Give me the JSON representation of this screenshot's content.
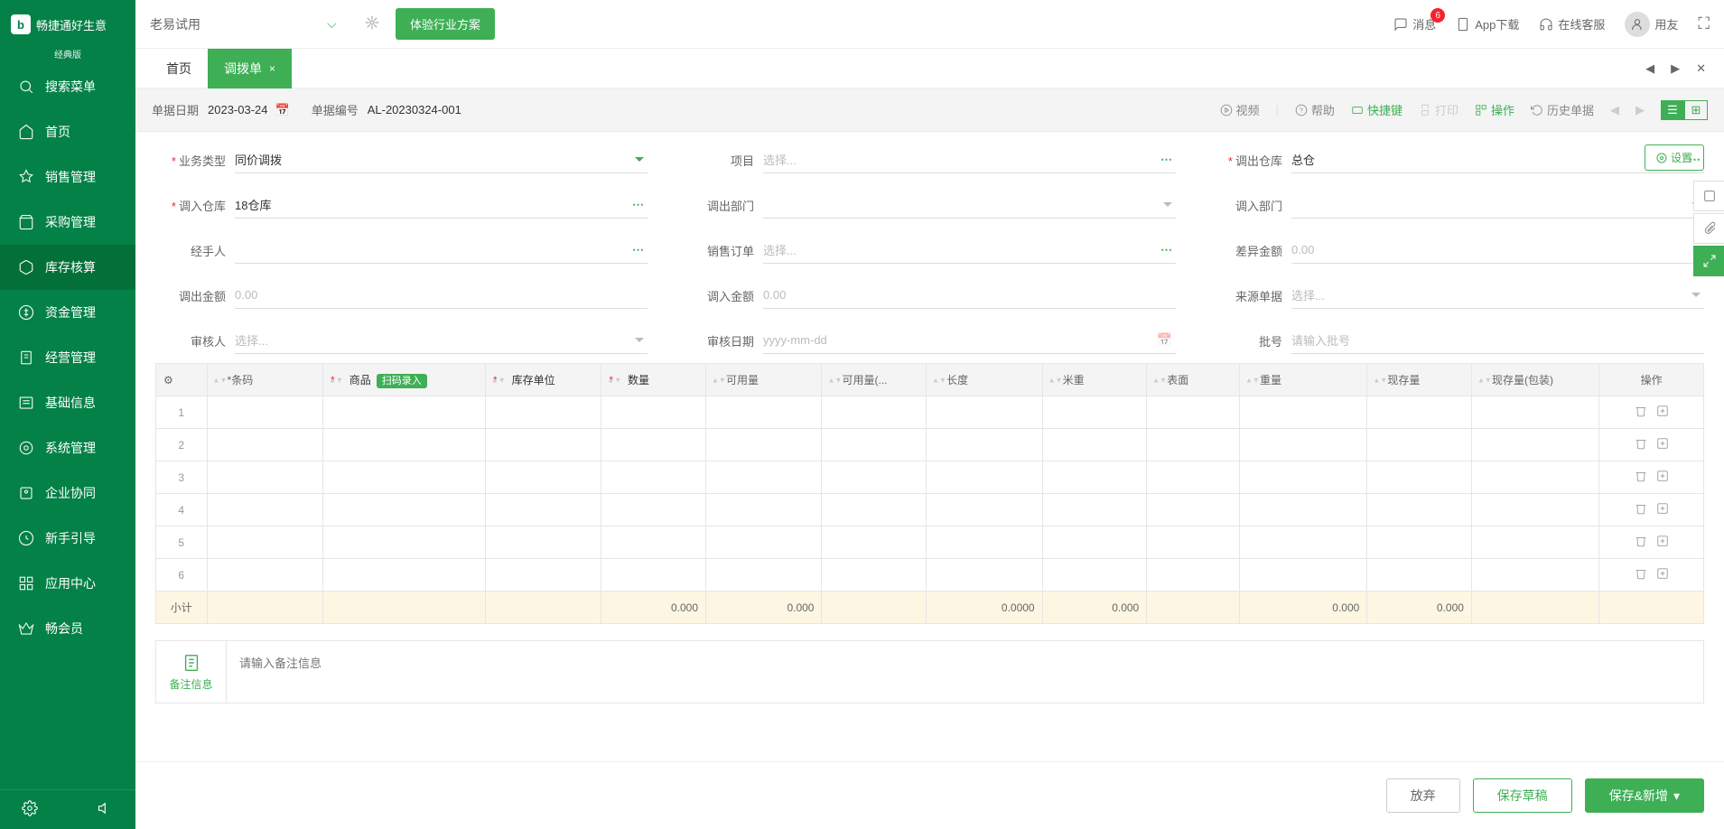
{
  "brand": {
    "name": "畅捷通好生意",
    "edition": "经典版",
    "logo_letter": "b"
  },
  "tenant": "老易试用",
  "top_buttons": {
    "experience": "体验行业方案"
  },
  "top_right": {
    "messages": "消息",
    "msg_badge": "6",
    "download": "App下载",
    "service": "在线客服",
    "user": "用友"
  },
  "sidebar": [
    {
      "label": "搜索菜单",
      "icon": "search"
    },
    {
      "label": "首页",
      "icon": "home"
    },
    {
      "label": "销售管理",
      "icon": "sale"
    },
    {
      "label": "采购管理",
      "icon": "bag"
    },
    {
      "label": "库存核算",
      "icon": "box",
      "active": true
    },
    {
      "label": "资金管理",
      "icon": "money"
    },
    {
      "label": "经营管理",
      "icon": "doc"
    },
    {
      "label": "基础信息",
      "icon": "info"
    },
    {
      "label": "系统管理",
      "icon": "gear"
    },
    {
      "label": "企业协同",
      "icon": "team"
    },
    {
      "label": "新手引导",
      "icon": "guide"
    },
    {
      "label": "应用中心",
      "icon": "apps"
    },
    {
      "label": "畅会员",
      "icon": "vip"
    }
  ],
  "tabs": {
    "home": "首页",
    "active": "调拨单"
  },
  "doc": {
    "date_lbl": "单据日期",
    "date_val": "2023-03-24",
    "no_lbl": "单据编号",
    "no_val": "AL-20230324-001"
  },
  "doc_actions": {
    "video": "视频",
    "help": "帮助",
    "shortcut": "快捷键",
    "print": "打印",
    "ops": "操作",
    "history": "历史单据"
  },
  "settings_btn": "设置",
  "form": {
    "biz_type_lbl": "业务类型",
    "biz_type_val": "同价调拨",
    "project_lbl": "项目",
    "project_ph": "选择...",
    "out_wh_lbl": "调出仓库",
    "out_wh_val": "总仓",
    "in_wh_lbl": "调入仓库",
    "in_wh_val": "18仓库",
    "out_dept_lbl": "调出部门",
    "in_dept_lbl": "调入部门",
    "handler_lbl": "经手人",
    "sale_order_lbl": "销售订单",
    "sale_order_ph": "选择...",
    "diff_amt_lbl": "差异金额",
    "diff_amt_val": "0.00",
    "out_amt_lbl": "调出金额",
    "out_amt_val": "0.00",
    "in_amt_lbl": "调入金额",
    "in_amt_val": "0.00",
    "src_doc_lbl": "来源单据",
    "src_doc_ph": "选择...",
    "auditor_lbl": "审核人",
    "auditor_ph": "选择...",
    "audit_date_lbl": "审核日期",
    "audit_date_ph": "yyyy-mm-dd",
    "batch_lbl": "批号",
    "batch_ph": "请输入批号"
  },
  "table": {
    "cols": {
      "barcode": "条码",
      "product": "商品",
      "scan": "扫码录入",
      "unit": "库存单位",
      "qty": "数量",
      "avail": "可用量",
      "avail_pkg": "可用量(...",
      "length": "长度",
      "weight_m": "米重",
      "surface": "表面",
      "weight": "重量",
      "stock": "现存量",
      "stock_pkg": "现存量(包装)",
      "ops": "操作"
    },
    "row_count": 6,
    "subtotal_lbl": "小计",
    "subtotal": {
      "qty": "0.000",
      "avail": "0.000",
      "length": "0.0000",
      "weight_m": "0.000",
      "weight": "0.000",
      "stock": "0.000"
    }
  },
  "remark": {
    "label": "备注信息",
    "placeholder": "请输入备注信息"
  },
  "footer": {
    "discard": "放弃",
    "save_draft": "保存草稿",
    "save_new": "保存&新增"
  }
}
